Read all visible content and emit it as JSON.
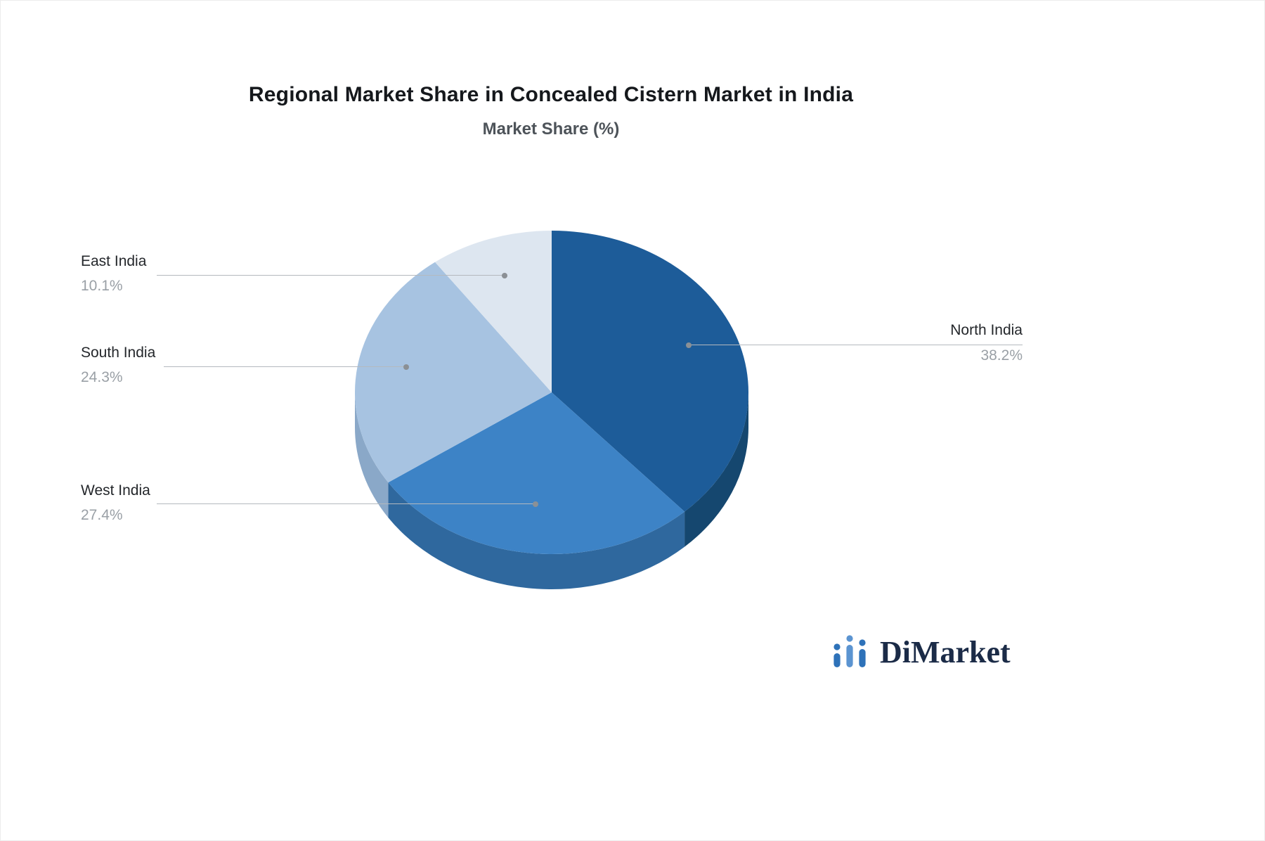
{
  "title": "Regional Market Share in Concealed Cistern Market in India",
  "subtitle": "Market Share (%)",
  "logo": {
    "text": "DiMarket",
    "icon": "bar-chart-icon",
    "icon_color": "#2e72b9",
    "icon_color_light": "#5b94d1",
    "text_color": "#1b2b47"
  },
  "chart_data": {
    "type": "pie",
    "style": "3d-pie",
    "title": "Regional Market Share in Concealed Cistern Market in India",
    "subtitle": "Market Share (%)",
    "unit": "%",
    "direction": "clockwise",
    "start_angle_deg": 0,
    "legend_position": "none",
    "labels": "outside-leader-lines",
    "slices": [
      {
        "label": "North India",
        "value": 38.2,
        "value_label": "38.2%",
        "color": "#1d5c99",
        "side_color": "#15476f"
      },
      {
        "label": "West India",
        "value": 27.4,
        "value_label": "27.4%",
        "color": "#3d83c6",
        "side_color": "#2f689e"
      },
      {
        "label": "South India",
        "value": 24.3,
        "value_label": "24.3%",
        "color": "#a7c3e1",
        "side_color": "#8aa8c8"
      },
      {
        "label": "East India",
        "value": 10.1,
        "value_label": "10.1%",
        "color": "#dde6f0",
        "side_color": "#bac8d8"
      }
    ]
  }
}
